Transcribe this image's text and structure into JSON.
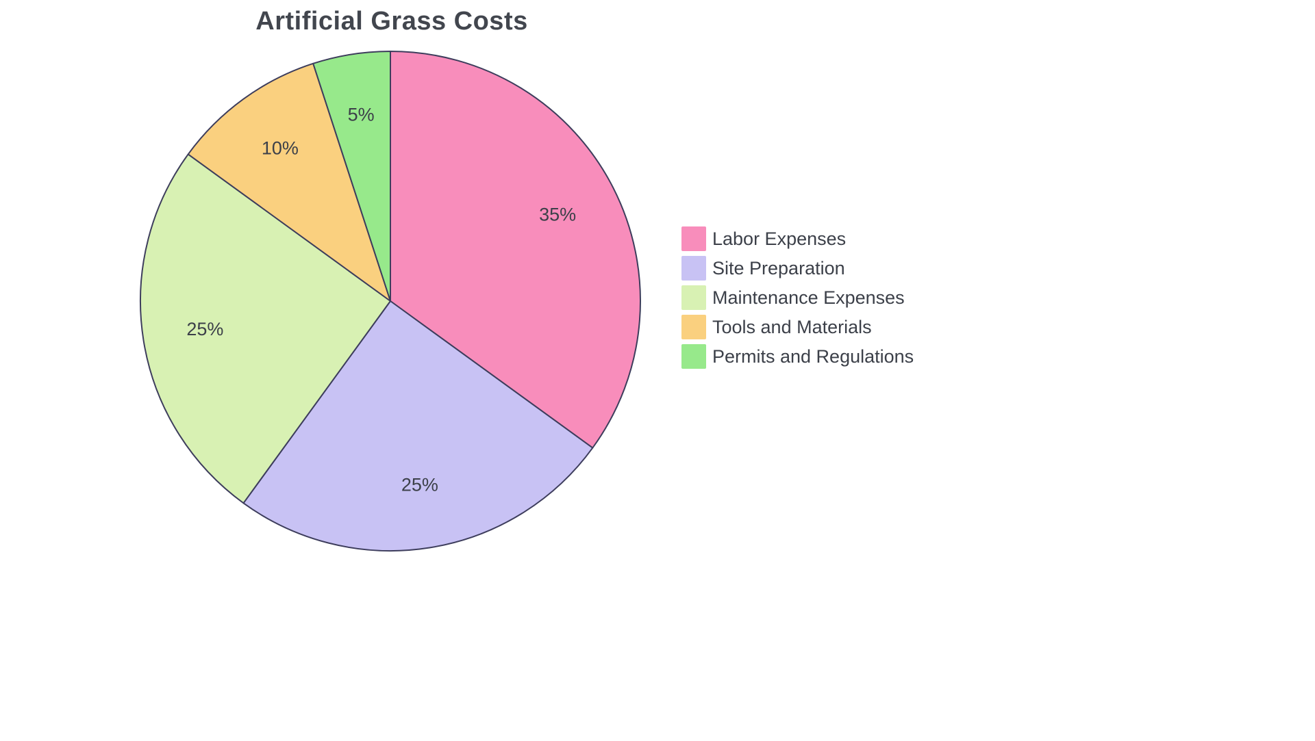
{
  "title": "Artificial Grass Costs",
  "chart_data": {
    "type": "pie",
    "title": "Artificial Grass Costs",
    "labels": [
      "Labor Expenses",
      "Site Preparation",
      "Maintenance Expenses",
      "Tools and Materials",
      "Permits and Regulations"
    ],
    "values": [
      35,
      25,
      25,
      10,
      5
    ],
    "percent_labels": [
      "35%",
      "25%",
      "25%",
      "10%",
      "5%"
    ],
    "colors": [
      "#F88DBB",
      "#C8C2F4",
      "#D8F1B3",
      "#FAD07F",
      "#97E98B"
    ],
    "edge_color": "#3D3D5C",
    "start_angle_deg": 0,
    "direction": "clockwise",
    "legend_position": "right",
    "label_color": "#3C4049"
  }
}
